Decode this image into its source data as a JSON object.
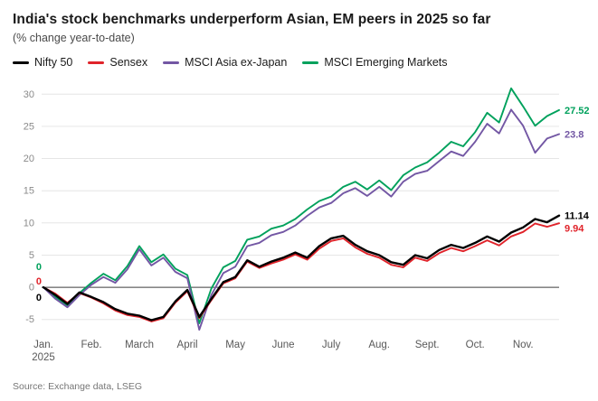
{
  "chart_data": {
    "type": "line",
    "title": "India's stock benchmarks underperform Asian, EM peers in 2025 so far",
    "subtitle": "(% change year-to-date)",
    "source": "Source: Exchange data, LSEG",
    "grid": true,
    "legend_position": "top",
    "ylim": [
      -7,
      32
    ],
    "yticks": [
      -5,
      0,
      5,
      10,
      15,
      20,
      25,
      30
    ],
    "xlim": [
      0,
      10.75
    ],
    "xticks": [
      {
        "pos": 0,
        "label": "Jan.",
        "sub": "2025"
      },
      {
        "pos": 1,
        "label": "Feb."
      },
      {
        "pos": 2,
        "label": "March"
      },
      {
        "pos": 3,
        "label": "April"
      },
      {
        "pos": 4,
        "label": "May"
      },
      {
        "pos": 5,
        "label": "June"
      },
      {
        "pos": 6,
        "label": "July"
      },
      {
        "pos": 7,
        "label": "Aug."
      },
      {
        "pos": 8,
        "label": "Sept."
      },
      {
        "pos": 9,
        "label": "Oct."
      },
      {
        "pos": 10,
        "label": "Nov."
      }
    ],
    "x": [
      0,
      0.25,
      0.5,
      0.75,
      1,
      1.25,
      1.5,
      1.75,
      2,
      2.25,
      2.5,
      2.75,
      3,
      3.25,
      3.5,
      3.75,
      4,
      4.25,
      4.5,
      4.75,
      5,
      5.25,
      5.5,
      5.75,
      6,
      6.25,
      6.5,
      6.75,
      7,
      7.25,
      7.5,
      7.75,
      8,
      8.25,
      8.5,
      8.75,
      9,
      9.25,
      9.5,
      9.75,
      10,
      10.25,
      10.5,
      10.75
    ],
    "series": [
      {
        "name": "Nifty 50",
        "color": "#000000",
        "start_label": "0",
        "end_label": "11.14",
        "values": [
          0,
          -1.2,
          -2.6,
          -0.8,
          -1.5,
          -2.3,
          -3.4,
          -4.1,
          -4.4,
          -5.1,
          -4.6,
          -2.2,
          -0.4,
          -4.6,
          -1.8,
          0.8,
          1.6,
          4.2,
          3.2,
          4,
          4.6,
          5.4,
          4.6,
          6.4,
          7.6,
          8,
          6.6,
          5.6,
          5,
          3.9,
          3.5,
          5,
          4.5,
          5.8,
          6.6,
          6.1,
          6.9,
          7.9,
          7.1,
          8.5,
          9.3,
          10.6,
          10.1,
          11.14
        ]
      },
      {
        "name": "Sensex",
        "color": "#e0232a",
        "start_label": "0",
        "end_label": "9.94",
        "values": [
          0,
          -1,
          -2.4,
          -0.9,
          -1.6,
          -2.5,
          -3.6,
          -4.3,
          -4.6,
          -5.3,
          -4.8,
          -2.4,
          -0.6,
          -4.8,
          -2,
          0.6,
          1.4,
          4,
          3,
          3.7,
          4.3,
          5.1,
          4.3,
          6,
          7.2,
          7.6,
          6.2,
          5.2,
          4.6,
          3.5,
          3.1,
          4.6,
          4.1,
          5.3,
          6.1,
          5.6,
          6.4,
          7.3,
          6.5,
          7.9,
          8.6,
          9.9,
          9.4,
          9.94
        ]
      },
      {
        "name": "MSCI Asia ex-Japan",
        "color": "#7357a4",
        "end_label": "23.8",
        "values": [
          0,
          -1.8,
          -3.1,
          -1.2,
          0.4,
          1.6,
          0.7,
          2.8,
          5.9,
          3.4,
          4.6,
          2.4,
          1.4,
          -6.6,
          -1.2,
          2.2,
          3.2,
          6.4,
          6.9,
          8.1,
          8.6,
          9.6,
          11.1,
          12.4,
          13.1,
          14.6,
          15.4,
          14.2,
          15.6,
          14.1,
          16.4,
          17.6,
          18.1,
          19.6,
          21.1,
          20.4,
          22.6,
          25.4,
          23.9,
          27.6,
          25.1,
          20.9,
          23.1,
          23.8
        ]
      },
      {
        "name": "MSCI Emerging Markets",
        "color": "#00a15c",
        "start_label": "0",
        "end_label": "27.52",
        "values": [
          0,
          -1.5,
          -2.8,
          -0.9,
          0.7,
          2.1,
          1.1,
          3.3,
          6.4,
          3.9,
          5.1,
          2.9,
          1.9,
          -5.6,
          -0.2,
          3.1,
          4.1,
          7.4,
          7.9,
          9.1,
          9.6,
          10.6,
          12.1,
          13.4,
          14.1,
          15.6,
          16.4,
          15.2,
          16.6,
          15.1,
          17.4,
          18.6,
          19.4,
          20.9,
          22.6,
          21.9,
          24.1,
          27.1,
          25.6,
          30.9,
          28.1,
          25.1,
          26.6,
          27.52
        ]
      }
    ]
  }
}
